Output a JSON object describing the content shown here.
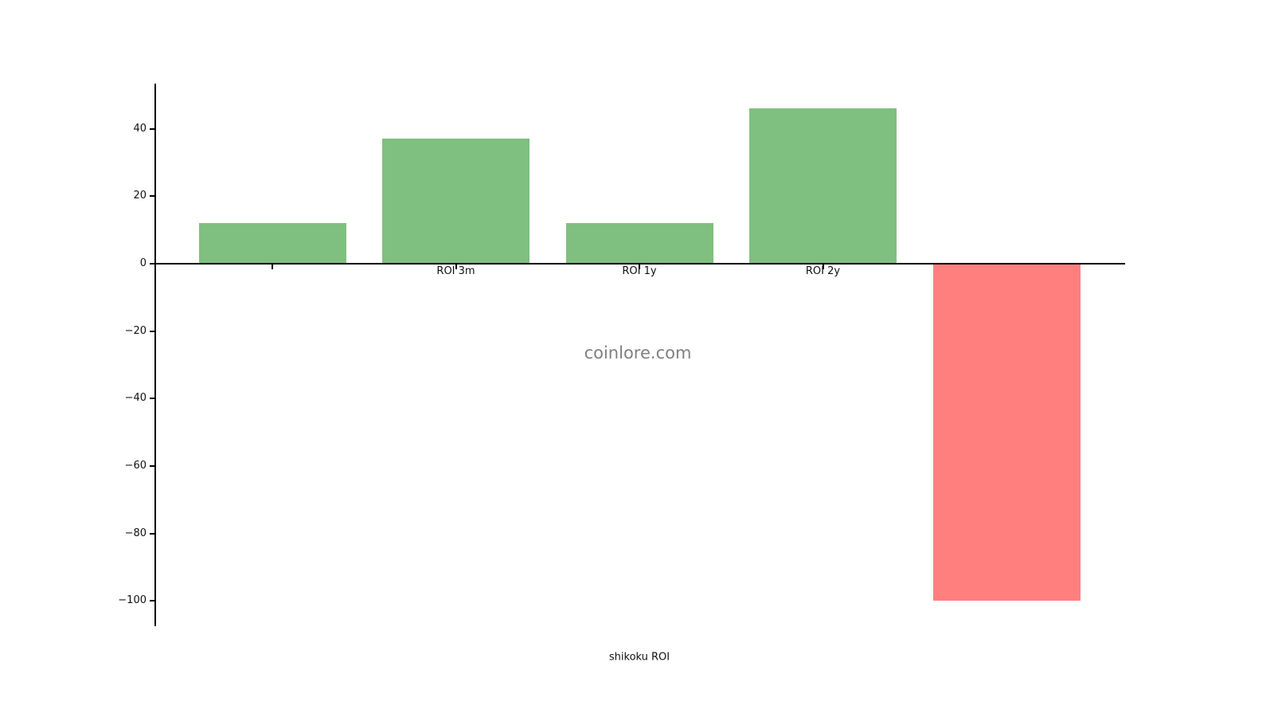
{
  "chart_data": {
    "type": "bar",
    "title": "shikoku ROI",
    "watermark": "coinlore.com",
    "categories": [
      "",
      "ROI 3m",
      "ROI 1y",
      "ROI 2y",
      ""
    ],
    "values": [
      12,
      37,
      12,
      46,
      -100
    ],
    "positive_color": "#7fbf7f",
    "negative_color": "#ff7f7f",
    "x_ticks": [
      {
        "index": 0,
        "label": ""
      },
      {
        "index": 1,
        "label": "ROI 3m"
      },
      {
        "index": 2,
        "label": "ROI 1y"
      },
      {
        "index": 3,
        "label": "ROI 2y"
      }
    ],
    "y_ticks": [
      {
        "value": 40,
        "label": "40"
      },
      {
        "value": 20,
        "label": "20"
      },
      {
        "value": 0,
        "label": "0"
      },
      {
        "value": -20,
        "label": "−20"
      },
      {
        "value": -40,
        "label": "−40"
      },
      {
        "value": -60,
        "label": "−60"
      },
      {
        "value": -80,
        "label": "−80"
      },
      {
        "value": -100,
        "label": "−100"
      }
    ],
    "ylim": [
      -107.5,
      53.5
    ],
    "grid": false,
    "legend": null,
    "text_color": "#111111",
    "watermark_color": "#808080"
  }
}
